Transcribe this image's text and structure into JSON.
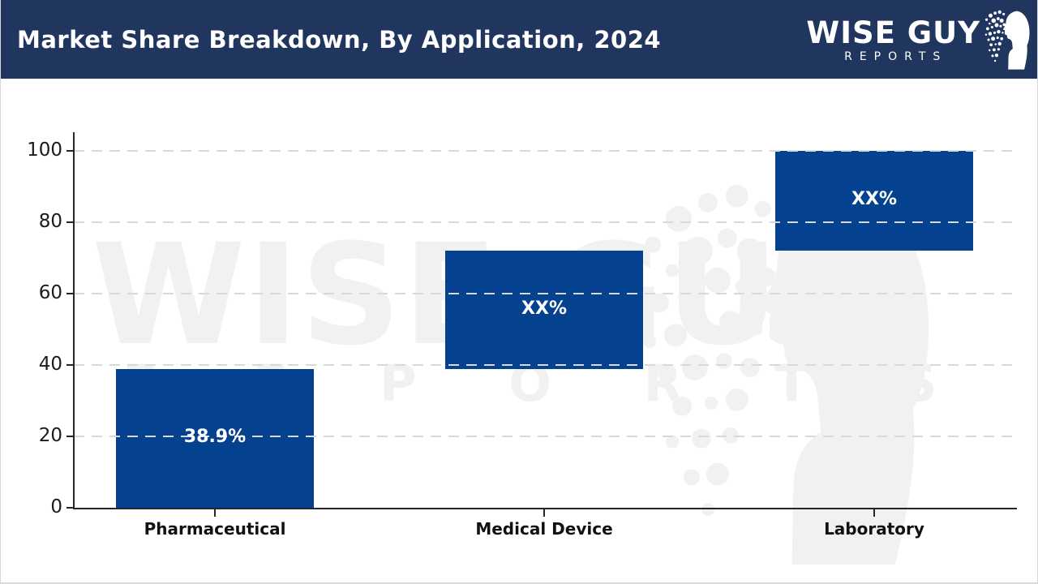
{
  "header": {
    "title": "Market Share Breakdown, By Application, 2024",
    "bg_color": "#20365f",
    "logo": {
      "line1": "WISE GUY",
      "line2": "REPORTS"
    }
  },
  "watermark": {
    "line1": "WISE GUY",
    "line2": "R E P O R T S"
  },
  "chart_data": {
    "type": "bar",
    "subtype": "stacked-waterfall",
    "title": "Market Share Breakdown, By Application, 2024",
    "categories": [
      "Pharmaceutical",
      "Medical Device",
      "Laboratory"
    ],
    "segments": [
      {
        "category": "Pharmaceutical",
        "start": 0,
        "end": 38.9,
        "label": "38.9%"
      },
      {
        "category": "Medical Device",
        "start": 38.9,
        "end": 72.1,
        "label": "XX%"
      },
      {
        "category": "Laboratory",
        "start": 72.1,
        "end": 100,
        "label": "XX%"
      }
    ],
    "yticks": [
      0,
      20,
      40,
      60,
      80,
      100
    ],
    "ylim": [
      0,
      105
    ],
    "xlabel": "",
    "ylabel": "",
    "bar_color": "#04418f",
    "label_color": "#ffffff",
    "grid": true,
    "grid_style": "dashed",
    "grid_over_bars": true,
    "legend": "none"
  }
}
